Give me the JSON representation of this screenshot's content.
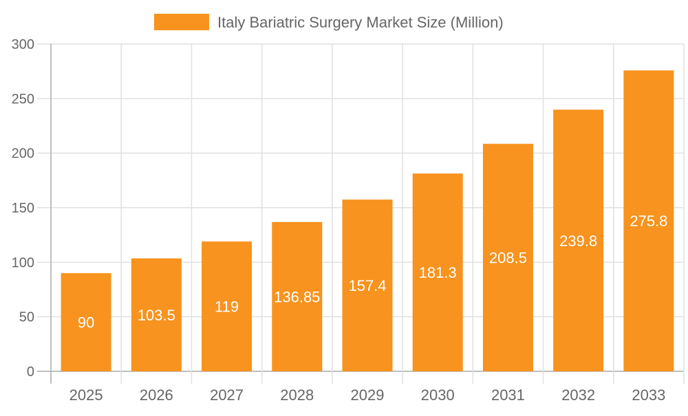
{
  "chart_data": {
    "type": "bar",
    "categories": [
      "2025",
      "2026",
      "2027",
      "2028",
      "2029",
      "2030",
      "2031",
      "2032",
      "2033"
    ],
    "series": [
      {
        "name": "Italy Bariatric Surgery Market Size (Million)",
        "values": [
          90,
          103.5,
          119,
          136.85,
          157.4,
          181.3,
          208.5,
          239.8,
          275.8
        ],
        "color": "#F7931E"
      }
    ],
    "data_labels": [
      "90",
      "103.5",
      "119",
      "136.85",
      "157.4",
      "181.3",
      "208.5",
      "239.8",
      "275.8"
    ],
    "ylim": [
      0,
      300
    ],
    "yticks": [
      0,
      50,
      100,
      150,
      200,
      250,
      300
    ],
    "ytick_labels": [
      "0",
      "50",
      "100",
      "150",
      "200",
      "250",
      "300"
    ],
    "grid": true,
    "legend_position": "top"
  }
}
